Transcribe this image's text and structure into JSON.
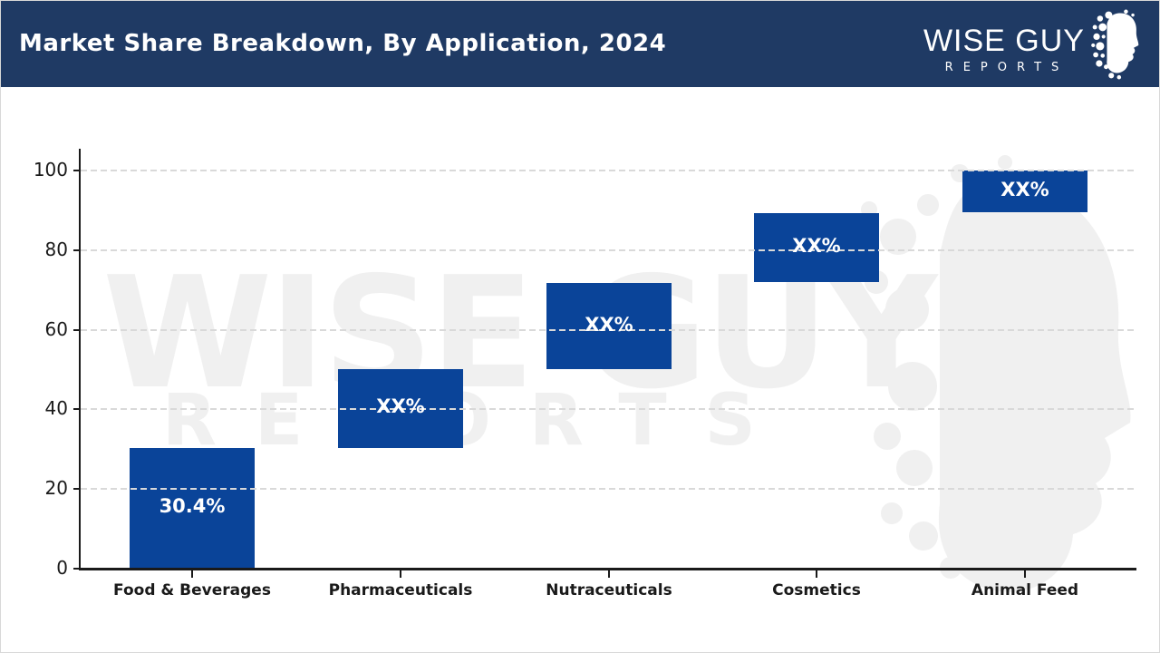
{
  "header": {
    "title": "Market Share Breakdown, By Application, 2024",
    "logo": {
      "title": "WISE GUY",
      "subtitle": "REPORTS"
    }
  },
  "watermark": {
    "line1": "WISE GUY",
    "line2": "REPORTS"
  },
  "colors": {
    "header_bg": "#1f3a64",
    "bar_blue": "#0a4499",
    "axis": "#1a1a1a",
    "grid": "#d9d9d9",
    "watermark": "#f0f0f0",
    "label_white": "#ffffff"
  },
  "chart_data": {
    "type": "bar",
    "subtype": "floating-waterfall",
    "title": "Market Share Breakdown, By Application, 2024",
    "xlabel": "",
    "ylabel": "",
    "categories": [
      "Food & Beverages",
      "Pharmaceuticals",
      "Nutraceuticals",
      "Cosmetics",
      "Animal Feed"
    ],
    "segments": [
      {
        "category": "Food & Beverages",
        "start": 0,
        "end": 30.4,
        "label": "30.4%"
      },
      {
        "category": "Pharmaceuticals",
        "start": 30.4,
        "end": 50.1,
        "label": "XX%"
      },
      {
        "category": "Nutraceuticals",
        "start": 50.1,
        "end": 71.7,
        "label": "XX%"
      },
      {
        "category": "Cosmetics",
        "start": 72.0,
        "end": 89.3,
        "label": "XX%"
      },
      {
        "category": "Animal Feed",
        "start": 89.5,
        "end": 100,
        "label": "XX%"
      }
    ],
    "yticks": [
      0,
      20,
      40,
      60,
      80,
      100
    ],
    "ylim": [
      0,
      105
    ],
    "grid": "horizontal-dashed",
    "legend": "none"
  }
}
